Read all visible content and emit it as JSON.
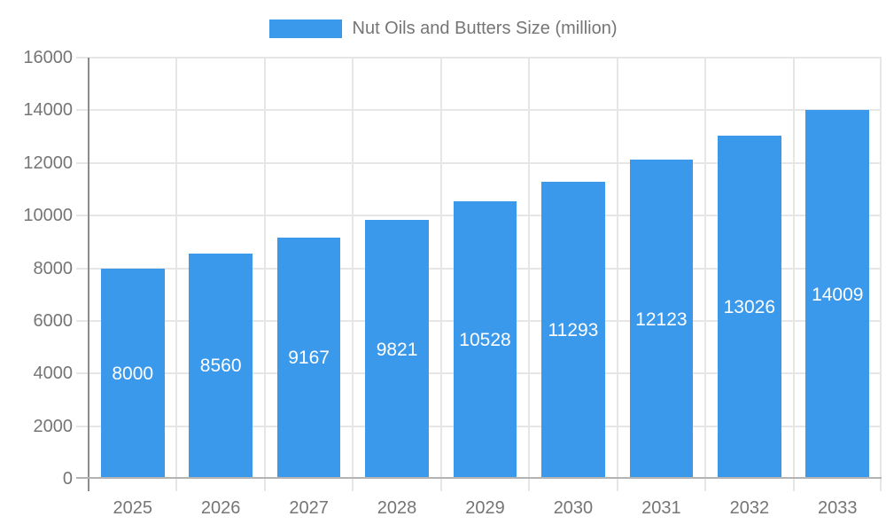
{
  "legend": {
    "label": "Nut Oils and Butters Size (million)"
  },
  "colors": {
    "bar": "#3B99EC",
    "grid": "#E6E6E6",
    "y_axis": "#8C8C8C",
    "x_axis": "#B3B3B3",
    "tick_text": "#757575",
    "bar_label_text": "#FFFFFF",
    "background": "#FFFFFF"
  },
  "chart_data": {
    "type": "bar",
    "title": "Nut Oils and Butters Size (million)",
    "series_name": "Nut Oils and Butters Size (million)",
    "categories": [
      "2025",
      "2026",
      "2027",
      "2028",
      "2029",
      "2030",
      "2031",
      "2032",
      "2033"
    ],
    "values": [
      8000,
      8560,
      9167,
      9821,
      10528,
      11293,
      12123,
      13026,
      14009
    ],
    "xlabel": "",
    "ylabel": "",
    "ylim": [
      0,
      16000
    ],
    "yticks": [
      0,
      2000,
      4000,
      6000,
      8000,
      10000,
      12000,
      14000,
      16000
    ],
    "grid": true,
    "legend_position": "top-center",
    "bar_value_labels": "inside-center-white"
  }
}
